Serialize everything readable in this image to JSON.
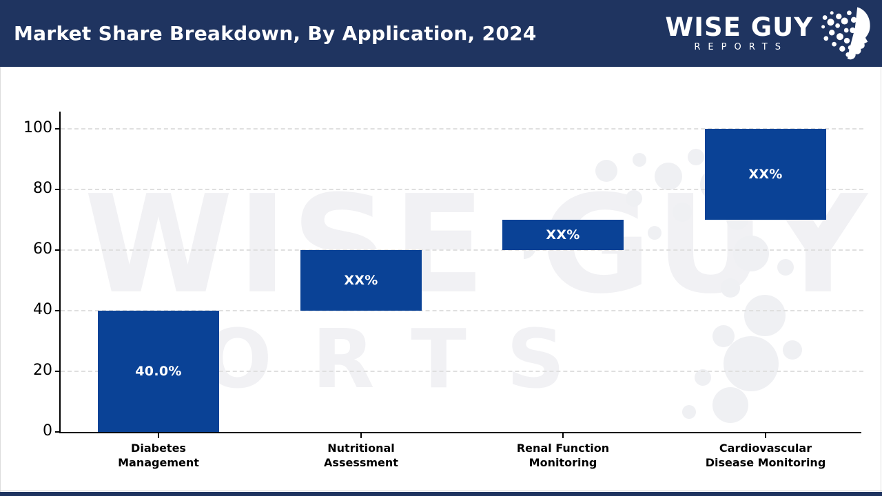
{
  "header": {
    "title": "Market Share Breakdown, By Application, 2024",
    "logo": {
      "line1": "WISE GUY",
      "line2": "REPORTS"
    }
  },
  "watermark": {
    "line1": "WISE GUY",
    "line2": "PORTS"
  },
  "colors": {
    "header_bg": "#1f3460",
    "bar_blue": "#0a4296",
    "watermark_gray": "#f1f1f4",
    "gridline_gray": "#dfdfdf",
    "axis_black": "#000000"
  },
  "chart_data": {
    "type": "bar",
    "subtype": "waterfall",
    "title": "Market Share Breakdown, By Application, 2024",
    "categories": [
      "Diabetes Management",
      "Nutritional Assessment",
      "Renal Function Monitoring",
      "Cardiovascular Disease Monitoring"
    ],
    "label_lines": [
      [
        "Diabetes",
        "Management"
      ],
      [
        "Nutritional",
        "Assessment"
      ],
      [
        "Renal Function",
        "Monitoring"
      ],
      [
        "Cardiovascular",
        "Disease Monitoring"
      ]
    ],
    "segments": [
      {
        "from": 0,
        "to": 40
      },
      {
        "from": 40,
        "to": 60
      },
      {
        "from": 60,
        "to": 70
      },
      {
        "from": 70,
        "to": 100
      }
    ],
    "values": [
      40,
      20,
      10,
      30
    ],
    "bar_labels": [
      "40.0%",
      "XX%",
      "XX%",
      "XX%"
    ],
    "y_ticks": [
      "0",
      "20",
      "40",
      "60",
      "80",
      "100"
    ],
    "ylim": [
      0,
      106
    ],
    "grid": "horizontal-dashed",
    "legend": "none"
  }
}
